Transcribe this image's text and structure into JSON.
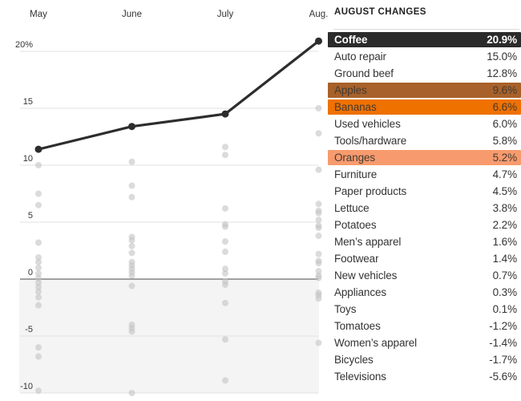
{
  "panel": {
    "header": "AUGUST CHANGES"
  },
  "table": {
    "rows": [
      {
        "label": "Coffee",
        "value": "20.9%",
        "highlight": "coffee"
      },
      {
        "label": "Auto repair",
        "value": "15.0%",
        "highlight": null
      },
      {
        "label": "Ground beef",
        "value": "12.8%",
        "highlight": null
      },
      {
        "label": "Apples",
        "value": "9.6%",
        "highlight": "apples"
      },
      {
        "label": "Bananas",
        "value": "6.6%",
        "highlight": "bananas"
      },
      {
        "label": "Used vehicles",
        "value": "6.0%",
        "highlight": null
      },
      {
        "label": "Tools/hardware",
        "value": "5.8%",
        "highlight": null
      },
      {
        "label": "Oranges",
        "value": "5.2%",
        "highlight": "oranges"
      },
      {
        "label": "Furniture",
        "value": "4.7%",
        "highlight": null
      },
      {
        "label": "Paper products",
        "value": "4.5%",
        "highlight": null
      },
      {
        "label": "Lettuce",
        "value": "3.8%",
        "highlight": null
      },
      {
        "label": "Potatoes",
        "value": "2.2%",
        "highlight": null
      },
      {
        "label": "Men’s apparel",
        "value": "1.6%",
        "highlight": null
      },
      {
        "label": "Footwear",
        "value": "1.4%",
        "highlight": null
      },
      {
        "label": "New vehicles",
        "value": "0.7%",
        "highlight": null
      },
      {
        "label": "Appliances",
        "value": "0.3%",
        "highlight": null
      },
      {
        "label": "Toys",
        "value": "0.1%",
        "highlight": null
      },
      {
        "label": "Tomatoes",
        "value": "-1.2%",
        "highlight": null
      },
      {
        "label": "Women’s apparel",
        "value": "-1.4%",
        "highlight": null
      },
      {
        "label": "Bicycles",
        "value": "-1.7%",
        "highlight": null
      },
      {
        "label": "Televisions",
        "value": "-5.6%",
        "highlight": null
      }
    ],
    "highlight_styles": {
      "coffee": {
        "bg": "#2b2b2b",
        "text": "#ffffff",
        "bold": true
      },
      "apples": {
        "bg": "#a8612a",
        "text": "#433a32",
        "bold": false
      },
      "bananas": {
        "bg": "#ef7100",
        "text": "#433a32",
        "bold": false
      },
      "oranges": {
        "bg": "#f79b6e",
        "text": "#433a32",
        "bold": false
      }
    }
  },
  "chart_data": {
    "type": "line",
    "categories": [
      "May",
      "June",
      "July",
      "Aug."
    ],
    "series": [
      {
        "name": "Coffee",
        "values": [
          11.4,
          13.4,
          14.5,
          20.9
        ]
      }
    ],
    "scatter_other_items": [
      [
        10.0,
        7.5,
        6.5,
        3.2,
        1.9,
        1.5,
        1.0,
        0.5,
        0.1,
        -0.3,
        -0.7,
        -1.1,
        -1.6,
        -2.3,
        -6.0,
        -6.8,
        -9.8
      ],
      [
        10.3,
        8.2,
        7.2,
        3.7,
        3.4,
        2.9,
        2.3,
        1.5,
        1.2,
        0.9,
        0.6,
        0.3,
        -0.6,
        -4.0,
        -4.3,
        -4.6,
        -10.0
      ],
      [
        11.6,
        10.9,
        6.2,
        4.8,
        4.6,
        3.3,
        2.4,
        0.9,
        0.5,
        -0.2,
        -0.5,
        -2.1,
        -5.3,
        -8.9
      ],
      [
        15.0,
        12.8,
        9.6,
        6.6,
        6.0,
        5.8,
        5.2,
        4.7,
        4.5,
        3.8,
        2.2,
        1.6,
        1.4,
        0.7,
        0.3,
        0.1,
        -1.2,
        -1.4,
        -1.7,
        -5.6
      ]
    ],
    "yticks": [
      {
        "value": 20,
        "label": "20%"
      },
      {
        "value": 15,
        "label": "15"
      },
      {
        "value": 10,
        "label": "10"
      },
      {
        "value": 5,
        "label": "5"
      },
      {
        "value": 0,
        "label": "0"
      },
      {
        "value": -5,
        "label": "-5"
      },
      {
        "value": -10,
        "label": "-10"
      }
    ],
    "ylim": [
      -10.7,
      22.5
    ],
    "negative_band": [
      0,
      -10
    ],
    "grid": true,
    "legend": "none",
    "title": "",
    "xlabel": "",
    "ylabel": ""
  },
  "colors": {
    "line": "#2d2d2d",
    "dot": "#c3c3c3",
    "grid": "#e2e2e2",
    "zero_line": "#4a4a4a",
    "band": "#f4f4f4",
    "axis_text": "#333333",
    "row_text": "#333333"
  }
}
